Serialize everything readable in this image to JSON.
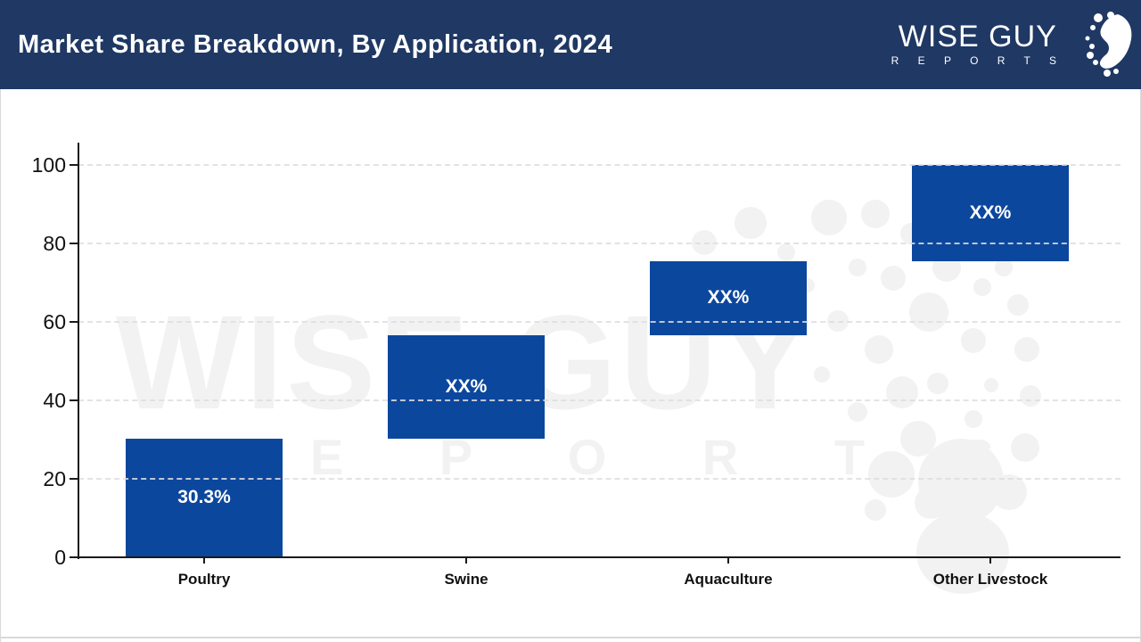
{
  "header": {
    "title": "Market Share Breakdown, By Application, 2024",
    "logo": {
      "line1": "WISE GUY",
      "line2": "R E P O R T S"
    }
  },
  "watermark": {
    "line1": "WISE GUY",
    "line2": "R E P O R T S"
  },
  "chart_data": {
    "type": "bar",
    "subtype": "waterfall-stacked-percent",
    "title": "Market Share Breakdown, By Application, 2024",
    "categories": [
      "Poultry",
      "Swine",
      "Aquaculture",
      "Other Livestock"
    ],
    "segments": [
      {
        "category": "Poultry",
        "start": 0,
        "end": 30.3,
        "label": "30.3%"
      },
      {
        "category": "Swine",
        "start": 30.3,
        "end": 56.6,
        "label": "XX%"
      },
      {
        "category": "Aquaculture",
        "start": 56.6,
        "end": 75.5,
        "label": "XX%"
      },
      {
        "category": "Other Livestock",
        "start": 75.5,
        "end": 100,
        "label": "XX%"
      }
    ],
    "ylim": [
      0,
      100
    ],
    "yticks": [
      0,
      20,
      40,
      60,
      80,
      100
    ],
    "xlabel": "",
    "ylabel": "",
    "legend": "none",
    "grid": "horizontal-dashed",
    "colors": {
      "bar": "#0c479e",
      "header_band": "#1f3864",
      "grid": "#dedede",
      "axis": "#1a1a1a",
      "watermark": "#f2f2f2"
    }
  }
}
